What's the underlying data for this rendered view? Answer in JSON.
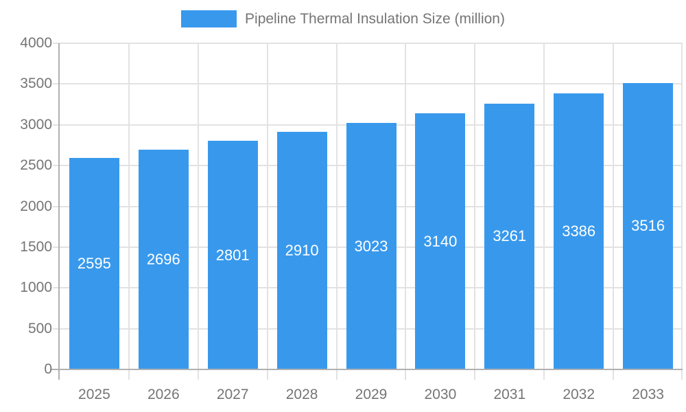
{
  "chart_data": {
    "type": "bar",
    "title": "Pipeline Thermal Insulation Size (million)",
    "categories": [
      "2025",
      "2026",
      "2027",
      "2028",
      "2029",
      "2030",
      "2031",
      "2032",
      "2033"
    ],
    "values": [
      2595,
      2696,
      2801,
      2910,
      3023,
      3140,
      3261,
      3386,
      3516
    ],
    "xlabel": "",
    "ylabel": "",
    "ylim": [
      0,
      4000
    ],
    "yticks": [
      0,
      500,
      1000,
      1500,
      2000,
      2500,
      3000,
      3500,
      4000
    ],
    "grid": true,
    "legend_position": "top-center",
    "value_labels": "inside-middle"
  },
  "colors": {
    "bar": "#3899EC",
    "value_label": "#ffffff",
    "axis_text": "#757575",
    "legend_text": "#757575",
    "grid_line": "#e2e2e2",
    "axis_line": "#b0b0b0",
    "minor_tick": "#e2e2e2",
    "background": "#ffffff"
  }
}
